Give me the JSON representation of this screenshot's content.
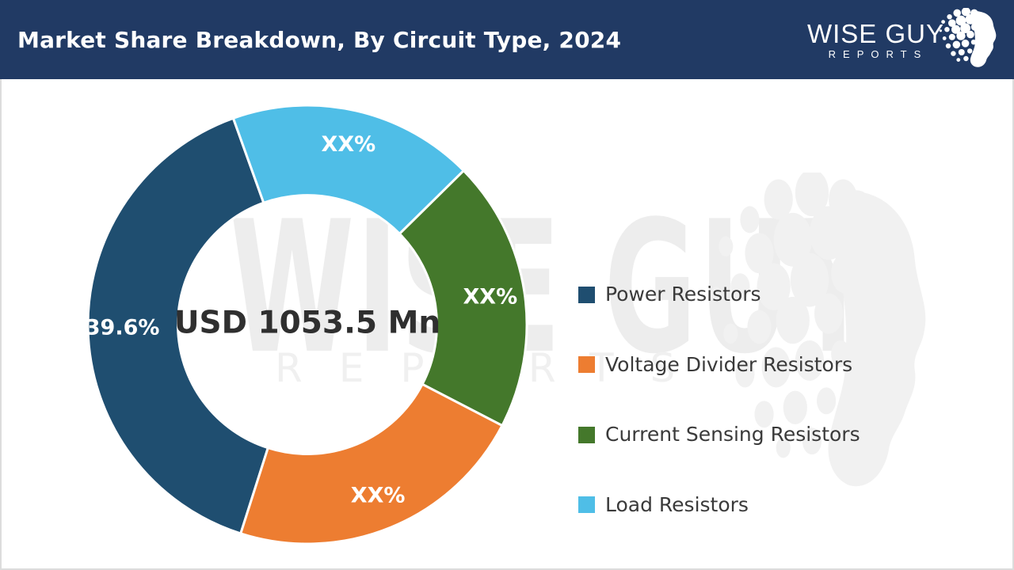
{
  "header": {
    "title": "Market Share Breakdown, By Circuit Type, 2024",
    "bg_color": "#213A64",
    "logo": {
      "line1": "WISE GUY",
      "line2": "REPORTS"
    }
  },
  "watermark": {
    "line1": "WISE GUY",
    "line2": "REPORTS"
  },
  "chart_data": {
    "type": "pie",
    "subtype": "donut",
    "title": "Market Share Breakdown, By Circuit Type, 2024",
    "center_label": "USD 1053.5 Mn",
    "units": "percent of market share",
    "segments": [
      {
        "label": "Power Resistors",
        "value": 39.6,
        "value_label": "39.6%",
        "color": "#1F4E70"
      },
      {
        "label": "Voltage Divider Resistors",
        "value": 22.3,
        "value_label": "XX%",
        "color": "#ED7D31"
      },
      {
        "label": "Current Sensing Resistors",
        "value": 20.0,
        "value_label": "XX%",
        "color": "#44782B"
      },
      {
        "label": "Load Resistors",
        "value": 18.1,
        "value_label": "XX%",
        "color": "#4FBEE7"
      }
    ],
    "draw_order": [
      0,
      3,
      2,
      1
    ],
    "start_angle_deg": 197.7,
    "hole_ratio": 0.59,
    "legend_position": "right",
    "separator_color": "#ffffff"
  }
}
